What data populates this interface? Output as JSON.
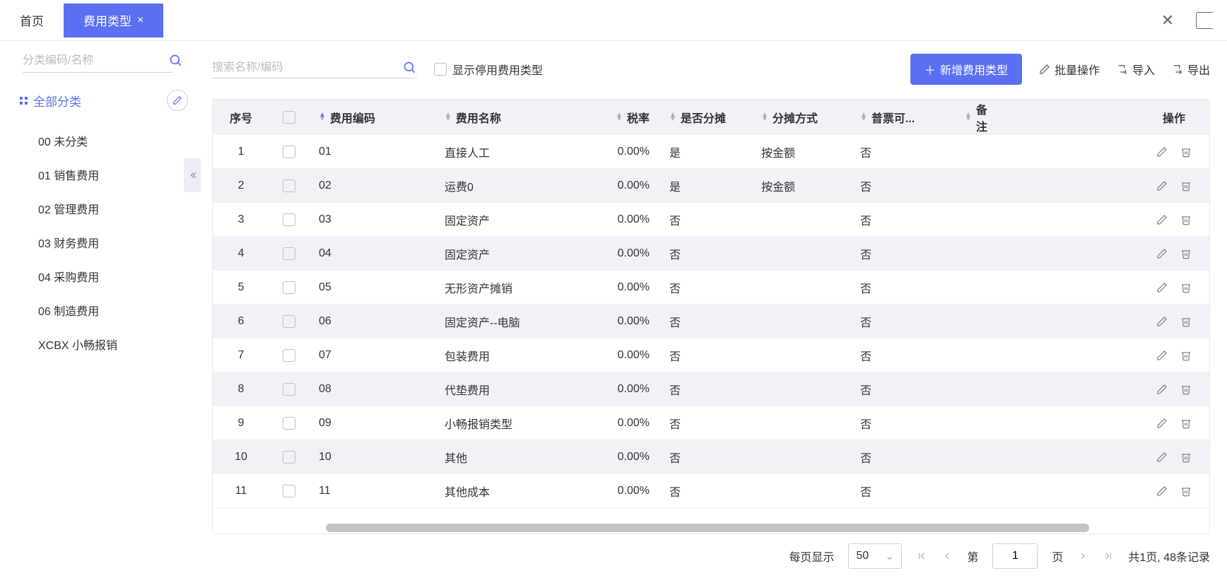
{
  "tabs": {
    "home": "首页",
    "active": "费用类型"
  },
  "sidebar": {
    "search_placeholder": "分类编码/名称",
    "all_categories": "全部分类",
    "categories": [
      "00 未分类",
      "01 销售费用",
      "02 管理费用",
      "03 财务费用",
      "04 采购费用",
      "06 制造费用",
      "XCBX 小畅报销"
    ]
  },
  "toolbar": {
    "search_placeholder": "搜索名称/编码",
    "show_disabled_label": "显示停用费用类型",
    "add_button": "新增费用类型",
    "batch_operation": "批量操作",
    "import_label": "导入",
    "export_label": "导出"
  },
  "table": {
    "headers": {
      "index": "序号",
      "code": "费用编码",
      "name": "费用名称",
      "rate": "税率",
      "is_fentan": "是否分摊",
      "fentan_method": "分摊方式",
      "pupiao": "普票可...",
      "remark": "备注",
      "action": "操作"
    },
    "rows": [
      {
        "idx": "1",
        "code": "01",
        "name": "直接人工",
        "rate": "0.00%",
        "fentan": "是",
        "method": "按金额",
        "pupiao": "否"
      },
      {
        "idx": "2",
        "code": "02",
        "name": "运费0",
        "rate": "0.00%",
        "fentan": "是",
        "method": "按金额",
        "pupiao": "否"
      },
      {
        "idx": "3",
        "code": "03",
        "name": "固定资产",
        "rate": "0.00%",
        "fentan": "否",
        "method": "",
        "pupiao": "否"
      },
      {
        "idx": "4",
        "code": "04",
        "name": "固定资产",
        "rate": "0.00%",
        "fentan": "否",
        "method": "",
        "pupiao": "否"
      },
      {
        "idx": "5",
        "code": "05",
        "name": "无形资产摊销",
        "rate": "0.00%",
        "fentan": "否",
        "method": "",
        "pupiao": "否"
      },
      {
        "idx": "6",
        "code": "06",
        "name": "固定资产--电脑",
        "rate": "0.00%",
        "fentan": "否",
        "method": "",
        "pupiao": "否"
      },
      {
        "idx": "7",
        "code": "07",
        "name": "包装费用",
        "rate": "0.00%",
        "fentan": "否",
        "method": "",
        "pupiao": "否"
      },
      {
        "idx": "8",
        "code": "08",
        "name": "代垫费用",
        "rate": "0.00%",
        "fentan": "否",
        "method": "",
        "pupiao": "否"
      },
      {
        "idx": "9",
        "code": "09",
        "name": "小畅报销类型",
        "rate": "0.00%",
        "fentan": "否",
        "method": "",
        "pupiao": "否"
      },
      {
        "idx": "10",
        "code": "10",
        "name": "其他",
        "rate": "0.00%",
        "fentan": "否",
        "method": "",
        "pupiao": "否"
      },
      {
        "idx": "11",
        "code": "11",
        "name": "其他成本",
        "rate": "0.00%",
        "fentan": "否",
        "method": "",
        "pupiao": "否"
      }
    ]
  },
  "pagination": {
    "per_page_label": "每页显示",
    "per_page_value": "50",
    "page_label_prefix": "第",
    "page_value": "1",
    "page_label_suffix": "页",
    "summary": "共1页, 48条记录"
  },
  "colors": {
    "primary": "#5b6ff2",
    "header_bg": "#f0f2f7",
    "border": "#e8e8e8"
  }
}
